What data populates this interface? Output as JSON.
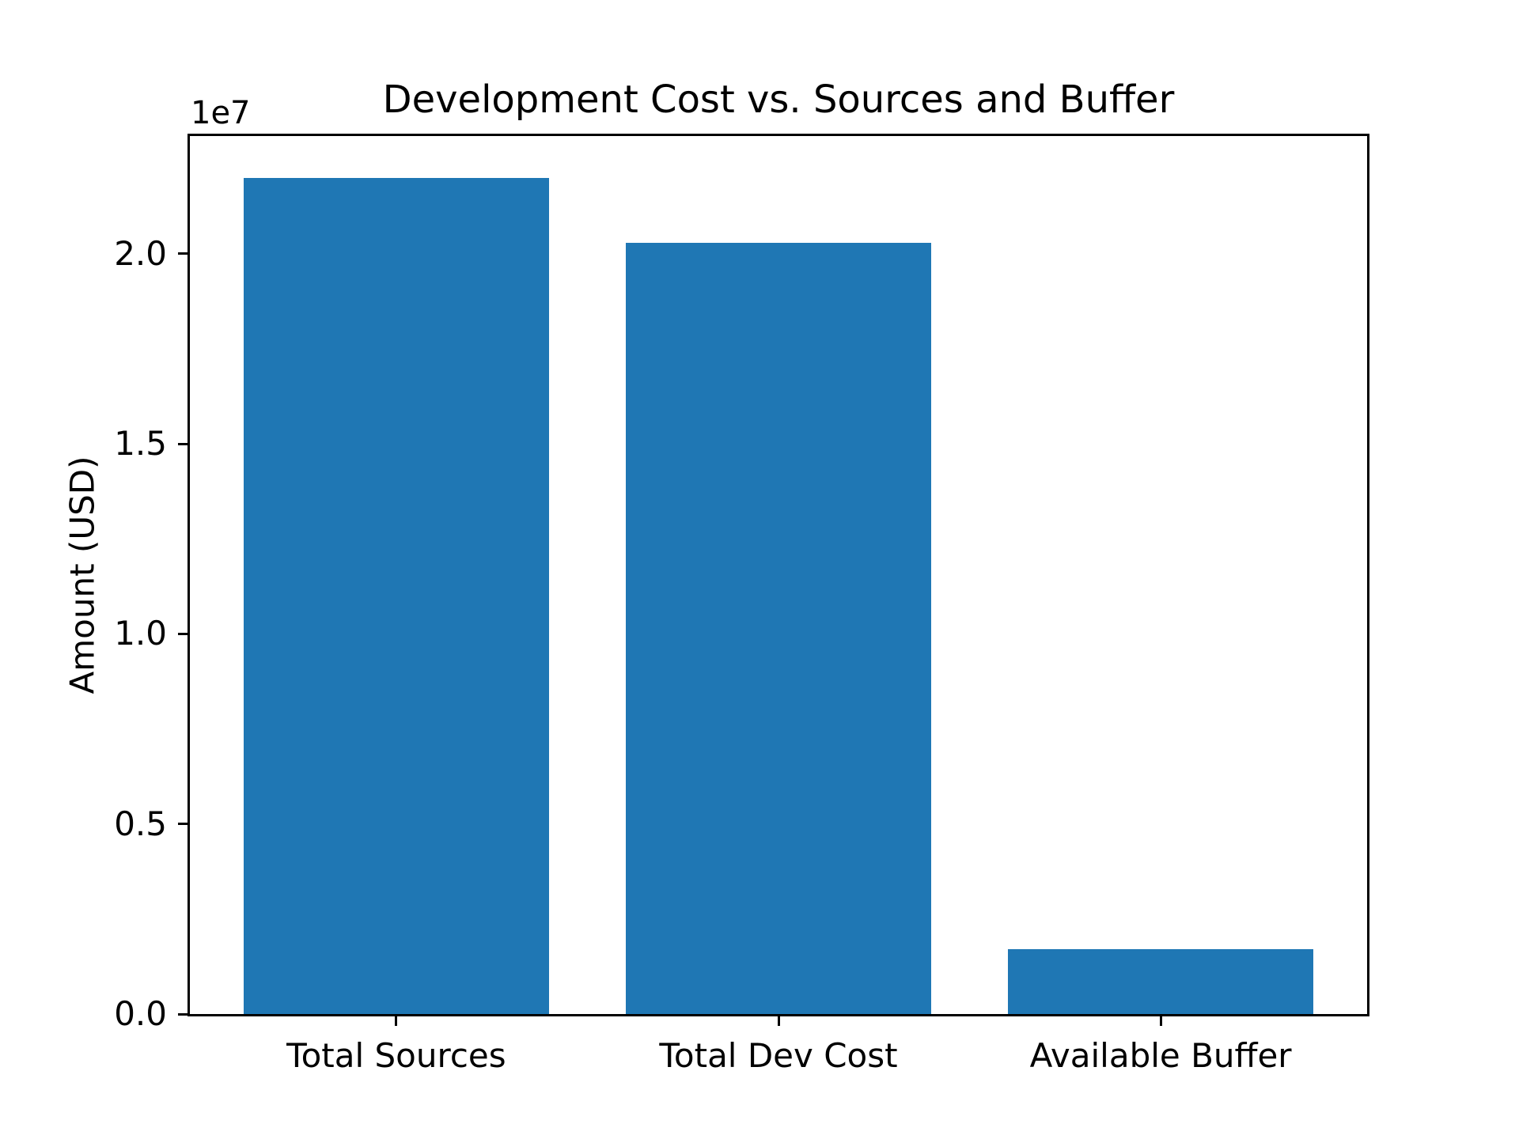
{
  "chart_data": {
    "type": "bar",
    "title": "Development Cost vs. Sources and Buffer",
    "xlabel": "",
    "ylabel": "Amount (USD)",
    "y_offset_text": "1e7",
    "categories": [
      "Total Sources",
      "Total Dev Cost",
      "Available Buffer"
    ],
    "values": [
      22000000,
      20300000,
      1700000
    ],
    "ylim": [
      0,
      23100000
    ],
    "y_ticks": [
      {
        "label": "0.0",
        "value": 0
      },
      {
        "label": "0.5",
        "value": 5000000
      },
      {
        "label": "1.0",
        "value": 10000000
      },
      {
        "label": "1.5",
        "value": 15000000
      },
      {
        "label": "2.0",
        "value": 20000000
      }
    ],
    "grid": false,
    "legend_position": "none",
    "bar_color": "#1f77b4",
    "axis_color": "#000000",
    "text_color": "#000000",
    "background_color": "#ffffff"
  }
}
